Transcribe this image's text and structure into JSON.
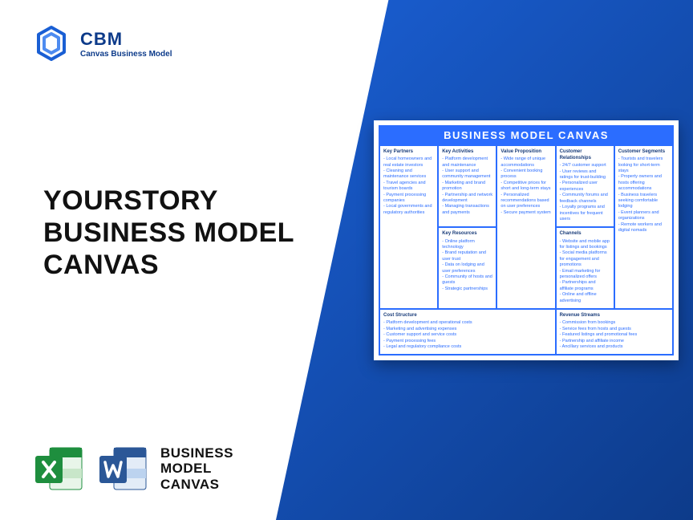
{
  "brand": {
    "acronym": "CBM",
    "name": "Canvas Business Model",
    "logo_color": "#1a5fd4"
  },
  "headline": {
    "line1": "YOURSTORY",
    "line2": "BUSINESS MODEL",
    "line3": "CANVAS"
  },
  "footer": {
    "line1": "BUSINESS",
    "line2": "MODEL",
    "line3": "CANVAS",
    "excel_color": "#1e8e3e",
    "word_color": "#2b5797"
  },
  "canvas": {
    "title": "BUSINESS MODEL CANVAS",
    "title_bg": "#2b6dff",
    "border_color": "#2b6dff",
    "text_color": "#2b6dff",
    "sections": {
      "key_partners": {
        "title": "Key Partners",
        "items": [
          "Local homeowners and real estate investors",
          "Cleaning and maintenance services",
          "Travel agencies and tourism boards",
          "Payment processing companies",
          "Local governments and regulatory authorities"
        ]
      },
      "key_activities": {
        "title": "Key Activities",
        "items": [
          "Platform development and maintenance",
          "User support and community management",
          "Marketing and brand promotion",
          "Partnership and network development",
          "Managing transactions and payments"
        ]
      },
      "value_proposition": {
        "title": "Value Proposition",
        "items": [
          "Wide range of unique accommodations",
          "Convenient booking process",
          "Competitive prices for short and long-term stays",
          "Personalized recommendations based on user preferences",
          "Secure payment system"
        ]
      },
      "customer_relationships": {
        "title": "Customer Relationships",
        "items": [
          "24/7 customer support",
          "User reviews and ratings for trust-building",
          "Personalized user experiences",
          "Community forums and feedback channels",
          "Loyalty programs and incentives for frequent users"
        ]
      },
      "customer_segments": {
        "title": "Customer Segments",
        "items": [
          "Tourists and travelers looking for short-term stays",
          "Property owners and hosts offering accommodations",
          "Business travelers seeking comfortable lodging",
          "Event planners and organizations",
          "Remote workers and digital nomads"
        ]
      },
      "key_resources": {
        "title": "Key Resources",
        "items": [
          "Online platform technology",
          "Brand reputation and user trust",
          "Data on lodging and user preferences",
          "Community of hosts and guests",
          "Strategic partnerships"
        ]
      },
      "channels": {
        "title": "Channels",
        "items": [
          "Website and mobile app for listings and bookings",
          "Social media platforms for engagement and promotions",
          "Email marketing for personalized offers",
          "Partnerships and affiliate programs",
          "Online and offline advertising"
        ]
      },
      "cost_structure": {
        "title": "Cost Structure",
        "items": [
          "Platform development and operational costs",
          "Marketing and advertising expenses",
          "Customer support and service costs",
          "Payment processing fees",
          "Legal and regulatory compliance costs"
        ]
      },
      "revenue_streams": {
        "title": "Revenue Streams",
        "items": [
          "Commission from bookings",
          "Service fees from hosts and guests",
          "Featured listings and promotional fees",
          "Partnership and affiliate income",
          "Ancillary services and products"
        ]
      }
    }
  },
  "colors": {
    "bg_gradient_start": "#1a5fd4",
    "bg_gradient_end": "#0d3b8a",
    "text_dark": "#111111"
  }
}
